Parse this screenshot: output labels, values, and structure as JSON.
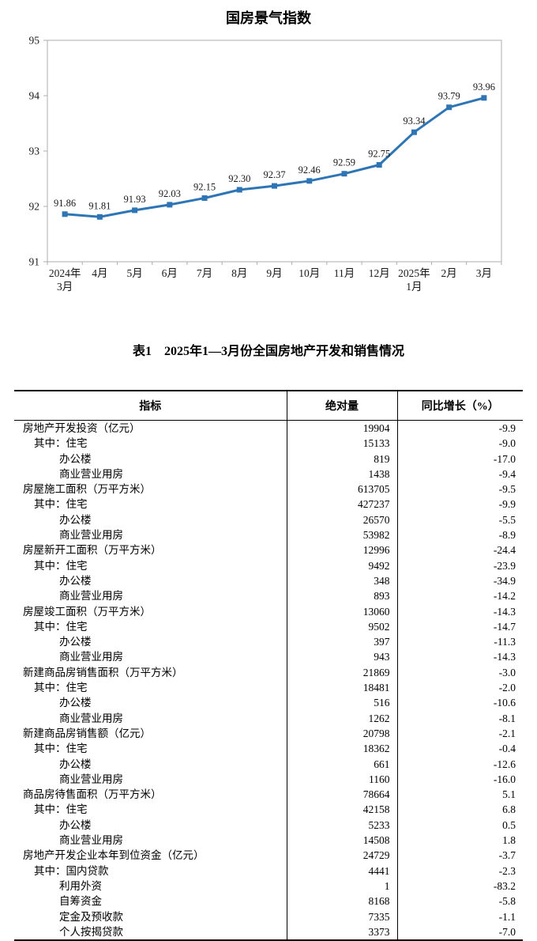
{
  "chart_data": {
    "type": "line",
    "title": "国房景气指数",
    "categories": [
      "2024年3月",
      "4月",
      "5月",
      "6月",
      "7月",
      "8月",
      "9月",
      "10月",
      "11月",
      "12月",
      "2025年1月",
      "2月",
      "3月"
    ],
    "tick_lines": [
      [
        "2024年",
        "3月"
      ],
      [
        "4月"
      ],
      [
        "5月"
      ],
      [
        "6月"
      ],
      [
        "7月"
      ],
      [
        "8月"
      ],
      [
        "9月"
      ],
      [
        "10月"
      ],
      [
        "11月"
      ],
      [
        "12月"
      ],
      [
        "2025年",
        "1月"
      ],
      [
        "2月"
      ],
      [
        "3月"
      ]
    ],
    "values": [
      91.86,
      91.81,
      91.93,
      92.03,
      92.15,
      92.3,
      92.37,
      92.46,
      92.59,
      92.75,
      93.34,
      93.79,
      93.96
    ],
    "xlabel": "",
    "ylabel": "",
    "ylim": [
      91,
      95
    ],
    "yticks": [
      91,
      92,
      93,
      94,
      95
    ],
    "grid": false,
    "legend": "none",
    "data_labels": true,
    "marker": "square",
    "line_color": "#2E75B6",
    "axis_color": "#ACACAC",
    "label_color": "#1a1a1a"
  },
  "table": {
    "title": "表1　2025年1—3月份全国房地产开发和销售情况",
    "columns": [
      "指标",
      "绝对量",
      "同比增长（%）"
    ],
    "rows": [
      {
        "indent": 0,
        "indicator": "房地产开发投资（亿元）",
        "absolute": "19904",
        "yoy": "-9.9"
      },
      {
        "indent": 1,
        "indicator": "其中：住宅",
        "absolute": "15133",
        "yoy": "-9.0"
      },
      {
        "indent": 2,
        "indicator": "办公楼",
        "absolute": "819",
        "yoy": "-17.0"
      },
      {
        "indent": 2,
        "indicator": "商业营业用房",
        "absolute": "1438",
        "yoy": "-9.4"
      },
      {
        "indent": 0,
        "indicator": "房屋施工面积（万平方米）",
        "absolute": "613705",
        "yoy": "-9.5"
      },
      {
        "indent": 1,
        "indicator": "其中：住宅",
        "absolute": "427237",
        "yoy": "-9.9"
      },
      {
        "indent": 2,
        "indicator": "办公楼",
        "absolute": "26570",
        "yoy": "-5.5"
      },
      {
        "indent": 2,
        "indicator": "商业营业用房",
        "absolute": "53982",
        "yoy": "-8.9"
      },
      {
        "indent": 0,
        "indicator": "房屋新开工面积（万平方米）",
        "absolute": "12996",
        "yoy": "-24.4"
      },
      {
        "indent": 1,
        "indicator": "其中：住宅",
        "absolute": "9492",
        "yoy": "-23.9"
      },
      {
        "indent": 2,
        "indicator": "办公楼",
        "absolute": "348",
        "yoy": "-34.9"
      },
      {
        "indent": 2,
        "indicator": "商业营业用房",
        "absolute": "893",
        "yoy": "-14.2"
      },
      {
        "indent": 0,
        "indicator": "房屋竣工面积（万平方米）",
        "absolute": "13060",
        "yoy": "-14.3"
      },
      {
        "indent": 1,
        "indicator": "其中：住宅",
        "absolute": "9502",
        "yoy": "-14.7"
      },
      {
        "indent": 2,
        "indicator": "办公楼",
        "absolute": "397",
        "yoy": "-11.3"
      },
      {
        "indent": 2,
        "indicator": "商业营业用房",
        "absolute": "943",
        "yoy": "-14.3"
      },
      {
        "indent": 0,
        "indicator": "新建商品房销售面积（万平方米）",
        "absolute": "21869",
        "yoy": "-3.0"
      },
      {
        "indent": 1,
        "indicator": "其中：住宅",
        "absolute": "18481",
        "yoy": "-2.0"
      },
      {
        "indent": 2,
        "indicator": "办公楼",
        "absolute": "516",
        "yoy": "-10.6"
      },
      {
        "indent": 2,
        "indicator": "商业营业用房",
        "absolute": "1262",
        "yoy": "-8.1"
      },
      {
        "indent": 0,
        "indicator": "新建商品房销售额（亿元）",
        "absolute": "20798",
        "yoy": "-2.1"
      },
      {
        "indent": 1,
        "indicator": "其中：住宅",
        "absolute": "18362",
        "yoy": "-0.4"
      },
      {
        "indent": 2,
        "indicator": "办公楼",
        "absolute": "661",
        "yoy": "-12.6"
      },
      {
        "indent": 2,
        "indicator": "商业营业用房",
        "absolute": "1160",
        "yoy": "-16.0"
      },
      {
        "indent": 0,
        "indicator": "商品房待售面积（万平方米）",
        "absolute": "78664",
        "yoy": "5.1"
      },
      {
        "indent": 1,
        "indicator": "其中：住宅",
        "absolute": "42158",
        "yoy": "6.8"
      },
      {
        "indent": 2,
        "indicator": "办公楼",
        "absolute": "5233",
        "yoy": "0.5"
      },
      {
        "indent": 2,
        "indicator": "商业营业用房",
        "absolute": "14508",
        "yoy": "1.8"
      },
      {
        "indent": 0,
        "indicator": "房地产开发企业本年到位资金（亿元）",
        "absolute": "24729",
        "yoy": "-3.7"
      },
      {
        "indent": 1,
        "indicator": "其中：国内贷款",
        "absolute": "4441",
        "yoy": "-2.3"
      },
      {
        "indent": 2,
        "indicator": "利用外资",
        "absolute": "1",
        "yoy": "-83.2"
      },
      {
        "indent": 2,
        "indicator": "自筹资金",
        "absolute": "8168",
        "yoy": "-5.8"
      },
      {
        "indent": 2,
        "indicator": "定金及预收款",
        "absolute": "7335",
        "yoy": "-1.1"
      },
      {
        "indent": 2,
        "indicator": "个人按揭贷款",
        "absolute": "3373",
        "yoy": "-7.0"
      }
    ]
  }
}
